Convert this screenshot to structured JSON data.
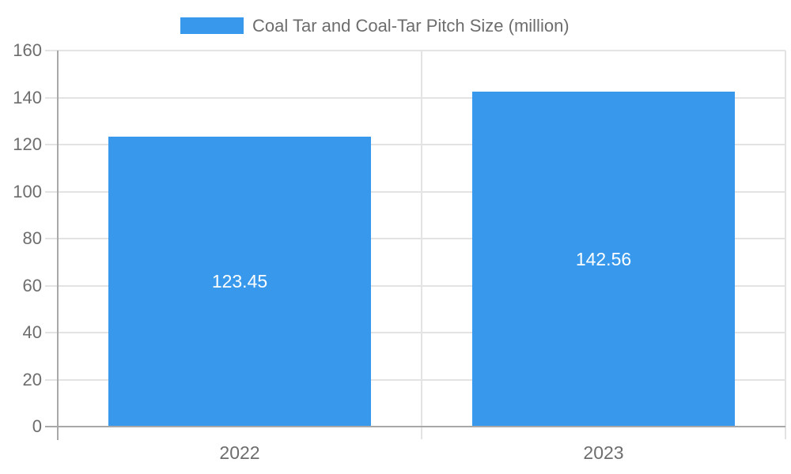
{
  "chart_data": {
    "type": "bar",
    "title": "",
    "categories": [
      "2022",
      "2023"
    ],
    "series": [
      {
        "name": "Coal Tar and Coal-Tar Pitch Size (million)",
        "values": [
          123.45,
          142.56
        ]
      }
    ],
    "value_labels": [
      "123.45",
      "142.56"
    ],
    "xlabel": "",
    "ylabel": "",
    "ylim": [
      0,
      160
    ],
    "ytick_step": 20,
    "yticks": [
      0,
      20,
      40,
      60,
      80,
      100,
      120,
      140,
      160
    ],
    "grid": true,
    "legend": {
      "position": "top-center",
      "entries": [
        "Coal Tar and Coal-Tar Pitch Size (million)"
      ]
    },
    "colors": {
      "bar": "#3899EC",
      "value_label": "#FFFFFF",
      "text": "#6D6D6D",
      "axis_line": "#A8A8A8",
      "gridline": "#E3E3E3",
      "background": "#FFFFFF"
    }
  }
}
